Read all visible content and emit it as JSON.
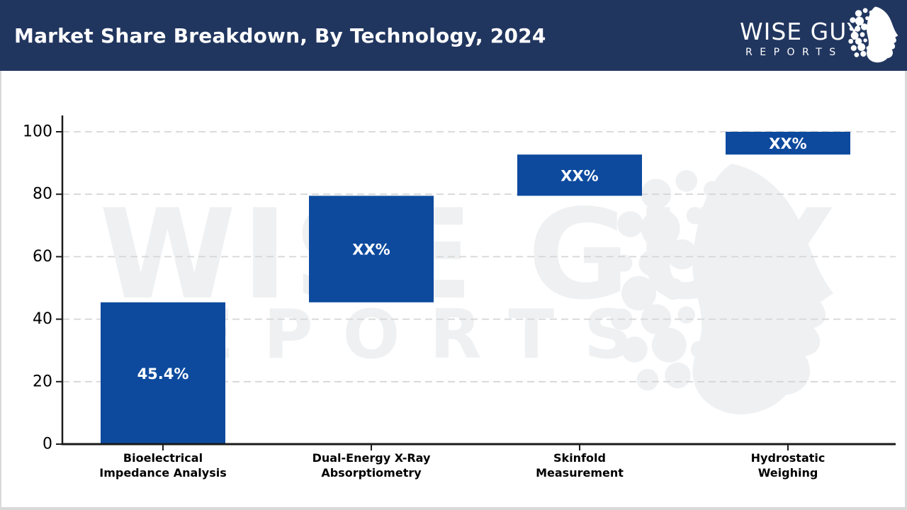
{
  "header": {
    "title": "Market Share Breakdown, By Technology, 2024",
    "logo": {
      "brand": "WISE GUY",
      "sub": "REPORTS"
    }
  },
  "watermark": {
    "brand": "WISE GUY",
    "sub": "REPORTS"
  },
  "chart_data": {
    "type": "bar",
    "subtype": "waterfall-floating-segments",
    "title": "Market Share Breakdown, By Technology, 2024",
    "categories": [
      "Bioelectrical\nImpedance Analysis",
      "Dual-Energy X-Ray\nAbsorptiometry",
      "Skinfold\nMeasurement",
      "Hydrostatic\nWeighing"
    ],
    "segments": [
      {
        "label": "Bioelectrical Impedance Analysis",
        "start": 0,
        "end": 45.4,
        "value": 45.4,
        "value_label": "45.4%"
      },
      {
        "label": "Dual-Energy X-Ray Absorptiometry",
        "start": 45.4,
        "end": 79.5,
        "value": 34.1,
        "value_label": "XX%"
      },
      {
        "label": "Skinfold Measurement",
        "start": 79.5,
        "end": 92.7,
        "value": 13.2,
        "value_label": "XX%"
      },
      {
        "label": "Hydrostatic Weighing",
        "start": 92.7,
        "end": 100,
        "value": 7.3,
        "value_label": "XX%"
      }
    ],
    "yticks": [
      0,
      20,
      40,
      60,
      80,
      100
    ],
    "ylim": [
      0,
      105
    ],
    "xlabel": "",
    "ylabel": "",
    "grid": "horizontal-dashed",
    "legend": "none",
    "bar_color": "#0d4a9e",
    "value_label_color": "#ffffff",
    "grid_color": "#d6d6d6",
    "axis_color": "#1a1a1a",
    "tick_label_color": "#000000",
    "header_color": "#21365f",
    "watermark_color": "#eef0f2"
  }
}
